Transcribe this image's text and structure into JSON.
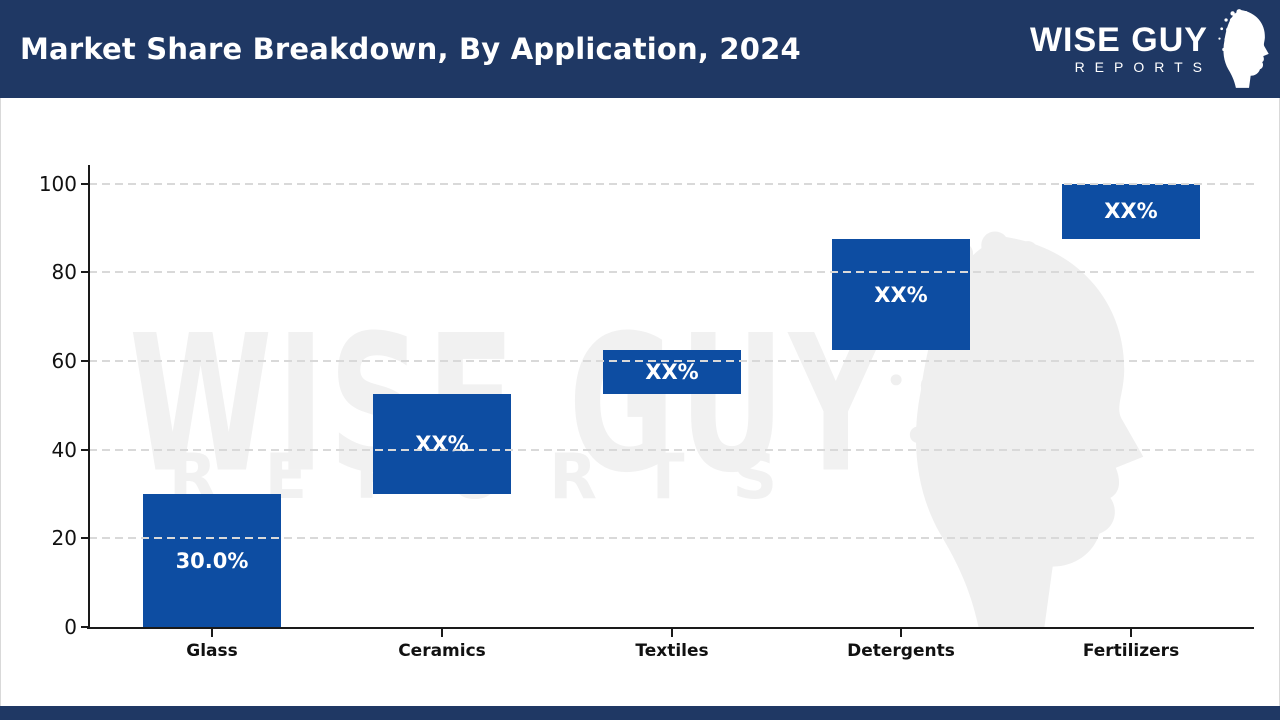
{
  "header": {
    "title": "Market Share Breakdown, By Application, 2024",
    "logo": {
      "brand": "WISE GUY",
      "tagline": "REPORTS"
    }
  },
  "watermark": {
    "brand": "WISE GUY",
    "tagline": "REPORTS"
  },
  "colors": {
    "header_bg": "#1f3864",
    "footer_bg": "#1f3864",
    "bar": "#0d4da2",
    "bar_label": "#ffffff",
    "grid": "#d9d9d9",
    "axis": "#1a1a1a",
    "watermark": "#f1f1f1"
  },
  "chart_data": {
    "type": "bar",
    "subtype": "waterfall",
    "title": "Market Share Breakdown, By Application, 2024",
    "categories": [
      "Glass",
      "Ceramics",
      "Textiles",
      "Detergents",
      "Fertilizers"
    ],
    "series": [
      {
        "name": "Market Share (%)",
        "segments": [
          {
            "category": "Glass",
            "label": "30.0%",
            "start": 0,
            "end": 30,
            "value": 30.0
          },
          {
            "category": "Ceramics",
            "label": "XX%",
            "start": 30,
            "end": 52.5,
            "value": null
          },
          {
            "category": "Textiles",
            "label": "XX%",
            "start": 52.5,
            "end": 62.5,
            "value": null
          },
          {
            "category": "Detergents",
            "label": "XX%",
            "start": 62.5,
            "end": 87.5,
            "value": null
          },
          {
            "category": "Fertilizers",
            "label": "XX%",
            "start": 87.5,
            "end": 100,
            "value": null
          }
        ]
      }
    ],
    "yticks": [
      0,
      20,
      40,
      60,
      80,
      100
    ],
    "ylim": [
      0,
      104
    ],
    "xlabel": "",
    "ylabel": "",
    "grid": "horizontal-dashed-over-bars",
    "legend": "none",
    "bar_color": "#0d4da2"
  }
}
